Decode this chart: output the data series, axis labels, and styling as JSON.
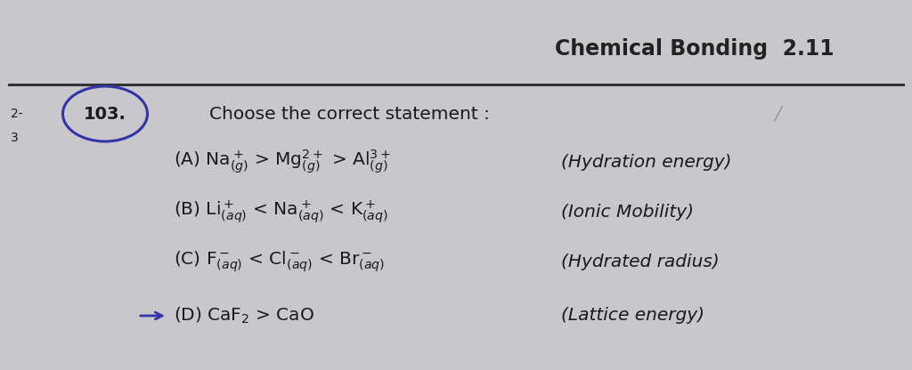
{
  "background_color": "#c8c8cc",
  "title": "Chemical Bonding  2.11",
  "title_fontsize": 17,
  "title_fontweight": "bold",
  "title_color": "#222222",
  "text_color": "#1a1a1a",
  "circle_color": "#3333aa",
  "line_color": "#333333",
  "side_top": "2-",
  "side_bottom": "3"
}
